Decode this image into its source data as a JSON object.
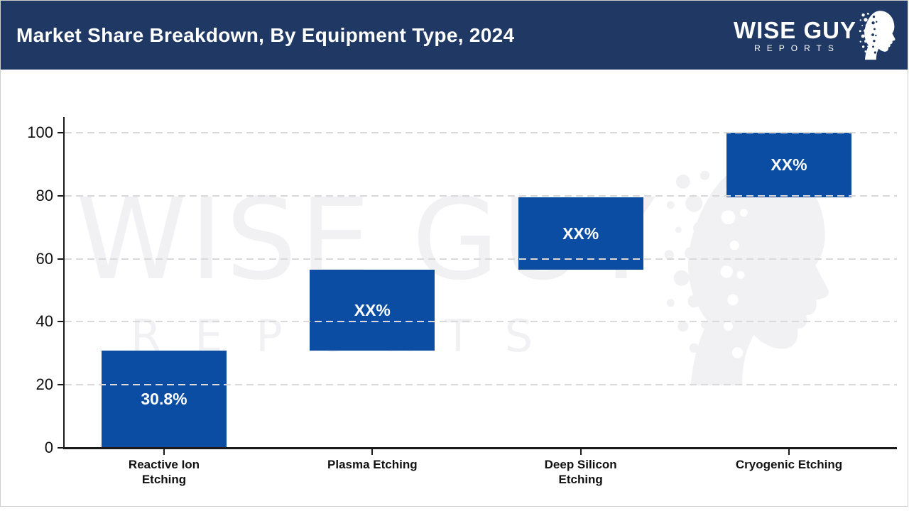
{
  "header": {
    "title": "Market Share Breakdown, By Equipment Type, 2024",
    "logo": {
      "word": "WISE GUY",
      "sub": "REPORTS"
    }
  },
  "watermark": {
    "word": "WISE GUY",
    "sub": "REPORTS"
  },
  "colors": {
    "header_bg": "#1f3864",
    "bar": "#0b4da2",
    "grid": "#d9d9d9",
    "axis": "#1a1a1a",
    "watermark": "#f1f1f4",
    "title_text": "#ffffff",
    "bar_label_text": "#ffffff",
    "tick_text": "#111111"
  },
  "chart_data": {
    "type": "bar",
    "subtype": "waterfall-floating-bars",
    "title": "Market Share Breakdown, By Equipment Type, 2024",
    "categories": [
      "Reactive Ion Etching",
      "Plasma Etching",
      "Deep Silicon Etching",
      "Cryogenic Etching"
    ],
    "category_label_lines": [
      [
        "Reactive Ion",
        "Etching"
      ],
      [
        "Plasma Etching"
      ],
      [
        "Deep Silicon",
        "Etching"
      ],
      [
        "Cryogenic Etching"
      ]
    ],
    "segments": [
      [
        0,
        30.8
      ],
      [
        30.8,
        56.5
      ],
      [
        56.5,
        79.5
      ],
      [
        79.5,
        100
      ]
    ],
    "values_estimated": [
      30.8,
      25.7,
      23.0,
      20.5
    ],
    "bar_labels": [
      "30.8%",
      "XX%",
      "XX%",
      "XX%"
    ],
    "xlabel": "",
    "ylabel": "",
    "ylim": [
      0,
      100
    ],
    "yticks": [
      0,
      20,
      40,
      60,
      80,
      100
    ],
    "grid": "horizontal-dashed",
    "legend_position": "none"
  }
}
